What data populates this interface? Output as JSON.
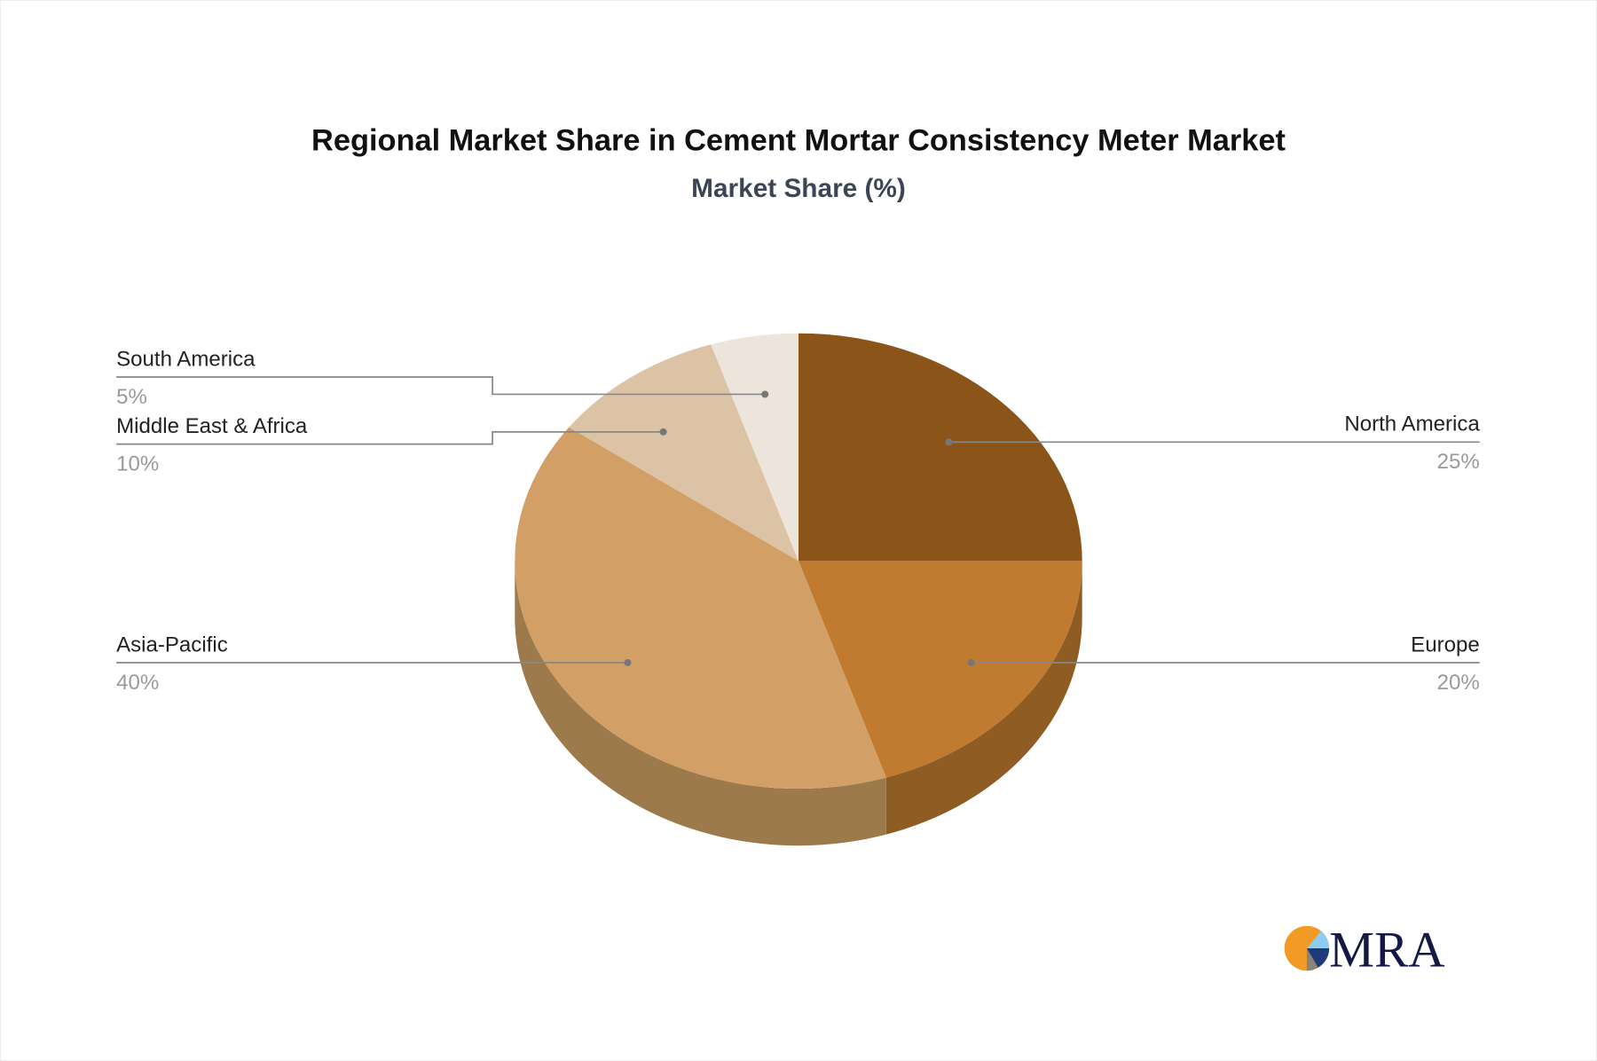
{
  "chart_data": {
    "type": "pie",
    "style": "3d",
    "title": "Regional Market Share in Cement Mortar Consistency Meter Market",
    "subtitle": "Market Share (%)",
    "unit": "%",
    "slices": [
      {
        "label": "North America",
        "value": 25,
        "display": "25%",
        "color": "#8B5519",
        "side_color": "#7a4a15"
      },
      {
        "label": "Europe",
        "value": 20,
        "display": "20%",
        "color": "#C07B31",
        "side_color": "#8F5C24"
      },
      {
        "label": "Asia-Pacific",
        "value": 40,
        "display": "40%",
        "color": "#D2A067",
        "side_color": "#9C7A4B"
      },
      {
        "label": "Middle East & Africa",
        "value": 10,
        "display": "10%",
        "color": "#DDC3A5",
        "side_color": "#b29b80"
      },
      {
        "label": "South America",
        "value": 5,
        "display": "5%",
        "color": "#EDE4DC",
        "side_color": "#c4b8ad"
      }
    ],
    "start_angle": "top",
    "direction": "clockwise"
  },
  "logo": {
    "text": "MRA",
    "colors": [
      "#F39A24",
      "#8ECDF0",
      "#1E3A7A",
      "#8A8378",
      "#141844"
    ]
  }
}
